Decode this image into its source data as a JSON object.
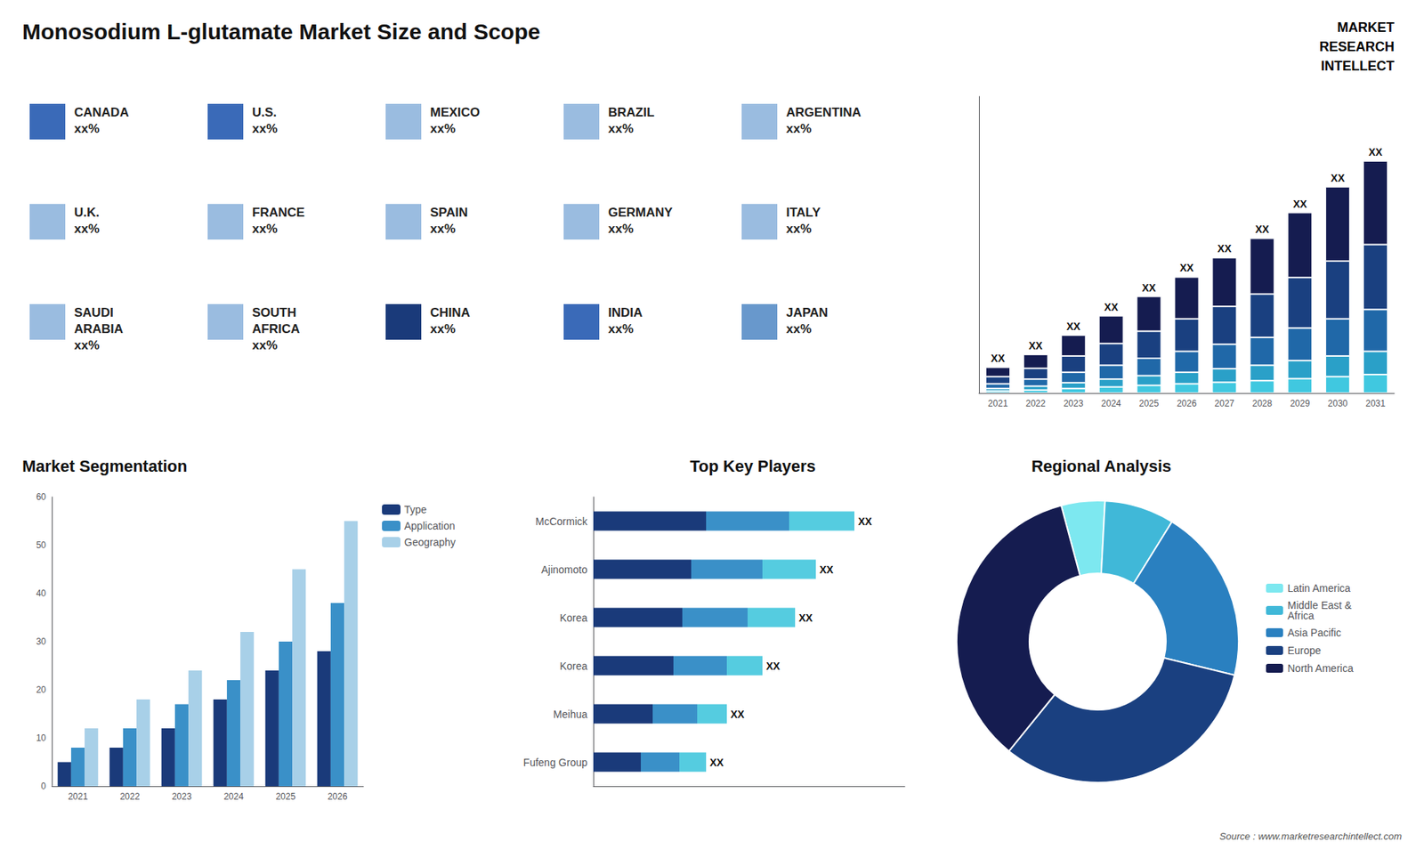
{
  "title": "Monosodium L-glutamate Market Size and Scope",
  "annotations": [
    "MARKET",
    "RESEARCH",
    "INTELLECT",
    "Source : www.marketresearchintellect.com"
  ],
  "chart_data": [
    {
      "type": "map",
      "annotations": [
        "CANADA\nxx%",
        "U.S.\nxx%",
        "MEXICO\nxx%",
        "BRAZIL\nxx%",
        "ARGENTINA\nxx%",
        "U.K.\nxx%",
        "FRANCE\nxx%",
        "SPAIN\nxx%",
        "GERMANY\nxx%",
        "ITALY\nxx%",
        "SAUDI\nARABIA\nxx%",
        "SOUTH\nAFRICA\nxx%",
        "CHINA\nxx%",
        "INDIA\nxx%",
        "JAPAN\nxx%"
      ],
      "colors": [
        "#3a6ab8",
        "#3a6ab8",
        "#9abce0",
        "#9abce0",
        "#9abce0",
        "#9abce0",
        "#9abce0",
        "#9abce0",
        "#9abce0",
        "#9abce0",
        "#9abce0",
        "#9abce0",
        "#1a3a7a",
        "#3a6ab8",
        "#6898cc"
      ]
    },
    {
      "type": "bar",
      "stacked": true,
      "categories": [
        "2021",
        "2022",
        "2023",
        "2024",
        "2025",
        "2026",
        "2027",
        "2028",
        "2029",
        "2030",
        "2031"
      ],
      "series": [
        {
          "color": "#40c8e0",
          "values": [
            0.16,
            0.24,
            0.36,
            0.48,
            0.6,
            0.72,
            0.84,
            0.96,
            1.12,
            1.28,
            1.44
          ]
        },
        {
          "color": "#2aa0c8",
          "values": [
            0.2,
            0.3,
            0.45,
            0.6,
            0.75,
            0.9,
            1.05,
            1.2,
            1.4,
            1.6,
            1.8
          ]
        },
        {
          "color": "#2068a8",
          "values": [
            0.36,
            0.54,
            0.81,
            1.08,
            1.35,
            1.62,
            1.89,
            2.16,
            2.52,
            2.88,
            3.24
          ]
        },
        {
          "color": "#1a4080",
          "values": [
            0.56,
            0.84,
            1.26,
            1.68,
            2.1,
            2.52,
            2.94,
            3.36,
            3.92,
            4.48,
            5.04
          ]
        },
        {
          "color": "#151c50",
          "values": [
            0.72,
            1.08,
            1.62,
            2.16,
            2.7,
            3.24,
            3.78,
            4.32,
            5.04,
            5.76,
            6.48
          ]
        }
      ],
      "annotations": [
        "XX",
        "XX",
        "XX",
        "XX",
        "XX",
        "XX",
        "XX",
        "XX",
        "XX",
        "XX",
        "XX"
      ],
      "ylim": [
        0,
        23
      ],
      "tick_labels": "x",
      "grid": false
    },
    {
      "type": "bar",
      "title": "Market Segmentation",
      "categories": [
        "2021",
        "2022",
        "2023",
        "2024",
        "2025",
        "2026"
      ],
      "series": [
        {
          "name": "Type",
          "color": "#1a3a7a",
          "values": [
            5,
            8,
            12,
            18,
            24,
            28
          ]
        },
        {
          "name": "Application",
          "color": "#3a90c8",
          "values": [
            8,
            12,
            17,
            22,
            30,
            38
          ]
        },
        {
          "name": "Geography",
          "color": "#a8d0e8",
          "values": [
            12,
            18,
            24,
            32,
            45,
            55
          ]
        }
      ],
      "ylim": [
        0,
        60
      ],
      "yticks": [
        0,
        10,
        20,
        30,
        40,
        50,
        60
      ],
      "legend": "right",
      "grid": false
    },
    {
      "type": "bar",
      "title": "Top Key Players",
      "orientation": "horizontal",
      "stacked": true,
      "categories": [
        "McCormick",
        "Ajinomoto",
        "Korea",
        "Korea",
        "Meihua",
        "Fufeng Group"
      ],
      "series": [
        {
          "color": "#1a3a7a",
          "values": [
            0.38,
            0.33,
            0.3,
            0.27,
            0.2,
            0.16
          ]
        },
        {
          "color": "#3a90c8",
          "values": [
            0.28,
            0.24,
            0.22,
            0.18,
            0.15,
            0.13
          ]
        },
        {
          "color": "#55cce0",
          "values": [
            0.22,
            0.18,
            0.16,
            0.12,
            0.1,
            0.09
          ]
        }
      ],
      "annotations": [
        "XX",
        "XX",
        "XX",
        "XX",
        "XX",
        "XX"
      ],
      "xlim": [
        0,
        1.05
      ],
      "tick_labels": "y",
      "grid": false
    },
    {
      "type": "pie",
      "title": "Regional Analysis",
      "categories": [
        "Latin America",
        "Middle East &\nAfrica",
        "Asia Pacific",
        "Europe",
        "North America"
      ],
      "values": [
        5,
        8,
        20,
        32,
        35
      ],
      "colors": [
        "#7de8f0",
        "#40b8d8",
        "#2a80c0",
        "#1a4080",
        "#151c50"
      ],
      "legend": "right",
      "data_labels": false
    }
  ]
}
